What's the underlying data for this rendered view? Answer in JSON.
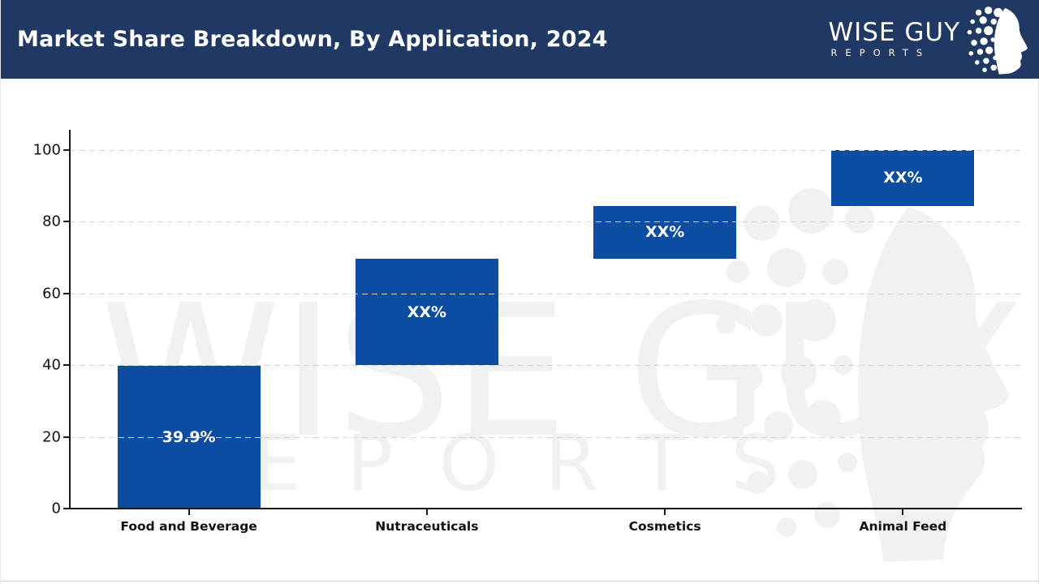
{
  "header": {
    "title": "Market Share Breakdown, By Application, 2024",
    "bg_color": "#1f3864",
    "logo": {
      "line1": "WISE GUY",
      "line2": "REPORTS"
    }
  },
  "watermark": {
    "line1": "WISE GUY",
    "line2": "REPORTS"
  },
  "chart_data": {
    "type": "bar",
    "subtype": "waterfall",
    "title": "Market Share Breakdown, By Application, 2024",
    "categories": [
      "Food and Beverage",
      "Nutraceuticals",
      "Cosmetics",
      "Animal Feed"
    ],
    "segments": [
      {
        "category": "Food and Beverage",
        "start": 0,
        "end": 39.9,
        "label": "39.9%"
      },
      {
        "category": "Nutraceuticals",
        "start": 40,
        "end": 69.6,
        "label": "XX%"
      },
      {
        "category": "Cosmetics",
        "start": 69.6,
        "end": 84.5,
        "label": "XX%"
      },
      {
        "category": "Animal Feed",
        "start": 84.5,
        "end": 100,
        "label": "XX%"
      }
    ],
    "xlabel": "",
    "ylabel": "",
    "ylim": [
      0,
      100
    ],
    "yticks": [
      0,
      20,
      40,
      60,
      80,
      100
    ],
    "grid": "horizontal-dashed",
    "legend": "none",
    "bar_color": "#0b4da2",
    "label_color": "#ffffff",
    "axis_color": "#1a1a1a",
    "grid_color": "#d4d4d4"
  }
}
